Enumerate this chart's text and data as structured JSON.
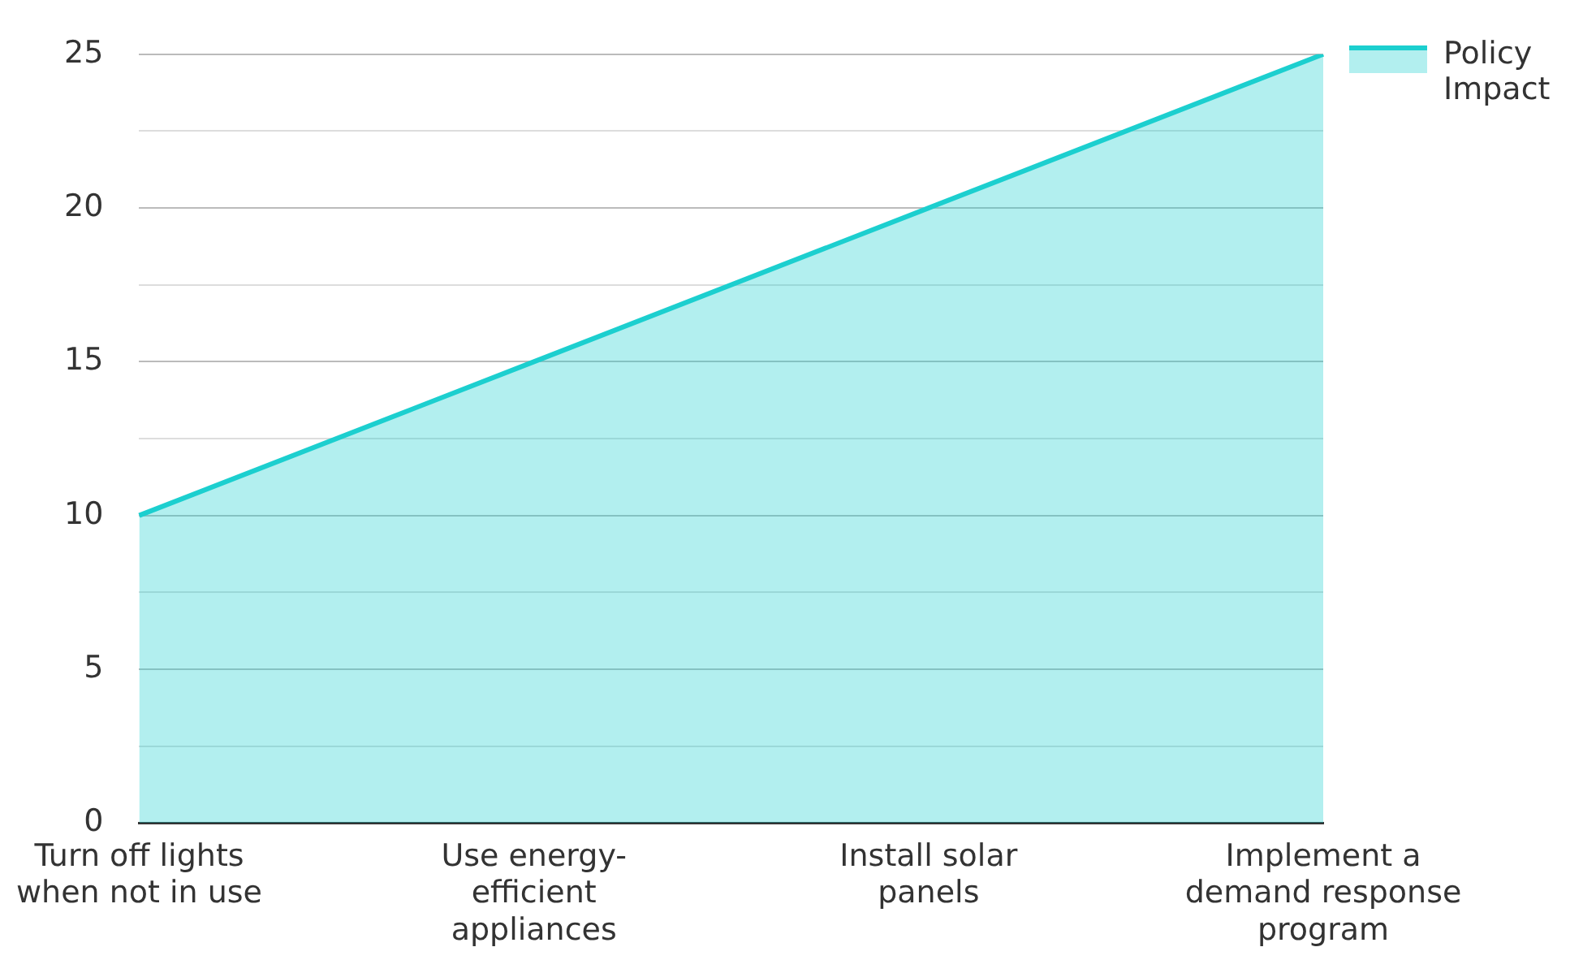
{
  "chart_data": {
    "type": "area",
    "categories": [
      "Turn off lights when not in use",
      "Use energy-efficient appliances",
      "Install solar panels",
      "Implement a demand response program"
    ],
    "series": [
      {
        "name": "Policy Impact",
        "color": "#1ccfcf",
        "values": [
          10,
          15,
          20,
          25
        ]
      }
    ],
    "ylim": [
      0,
      25
    ],
    "yticks": [
      0,
      {
        "value": 2.5,
        "label": null
      },
      5,
      {
        "value": 7.5,
        "label": null
      },
      10,
      {
        "value": 12.5,
        "label": null
      },
      15,
      {
        "value": 17.5,
        "label": null
      },
      20,
      {
        "value": 22.5,
        "label": null
      },
      25
    ],
    "grid": "y",
    "legend": "top right"
  }
}
